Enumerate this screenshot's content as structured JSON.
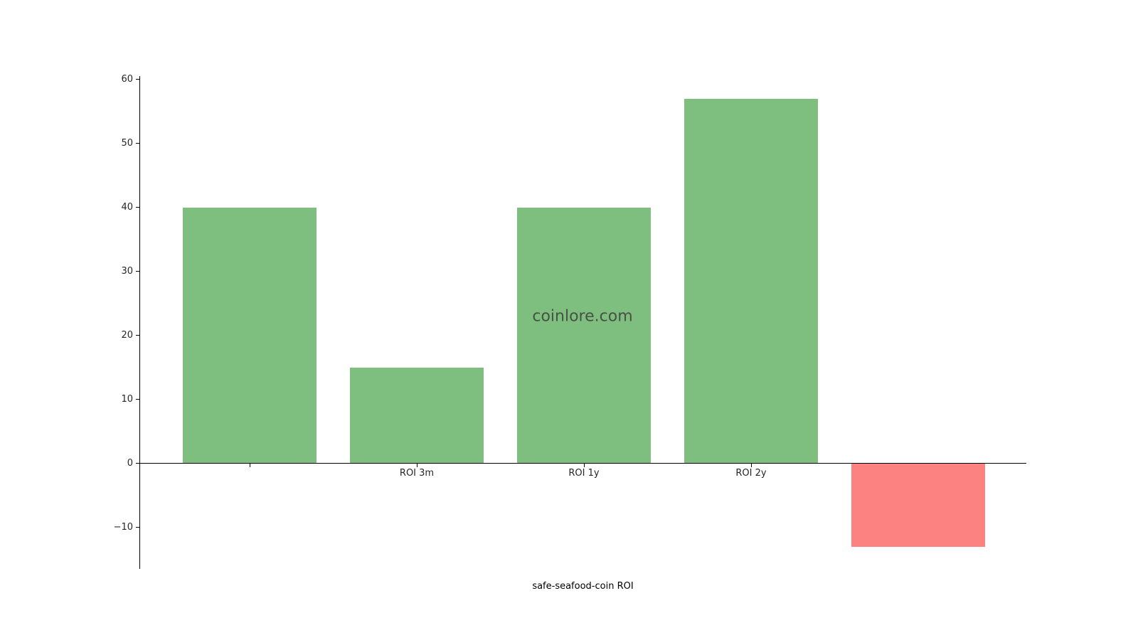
{
  "page": {
    "background": "#ffffff"
  },
  "chart_data": {
    "type": "bar",
    "title": "safe-seafood-coin ROI",
    "watermark": "coinlore.com",
    "categories": [
      "",
      "ROI 3m",
      "ROI 1y",
      "ROI 2y",
      ""
    ],
    "values": [
      40,
      15,
      40,
      57,
      -13
    ],
    "bar_colors": [
      "#7ebe7e",
      "#7ebe7e",
      "#7ebe7e",
      "#7ebe7e",
      "#fc8181"
    ],
    "positive_color": "#7ebe7e",
    "negative_color": "#fc8181",
    "xlabel": "",
    "ylabel": "",
    "ylim": [
      -16.5,
      60.5
    ],
    "yticks": [
      60,
      50,
      40,
      30,
      20,
      10,
      0,
      -10
    ],
    "ytick_labels": [
      "60",
      "50",
      "40",
      "30",
      "20",
      "10",
      "0",
      "−10"
    ],
    "xticks_with_marks": [
      0,
      1,
      2,
      3
    ],
    "grid": false,
    "legend": null,
    "axis_color": "#000000",
    "tick_text_color": "#262626"
  }
}
